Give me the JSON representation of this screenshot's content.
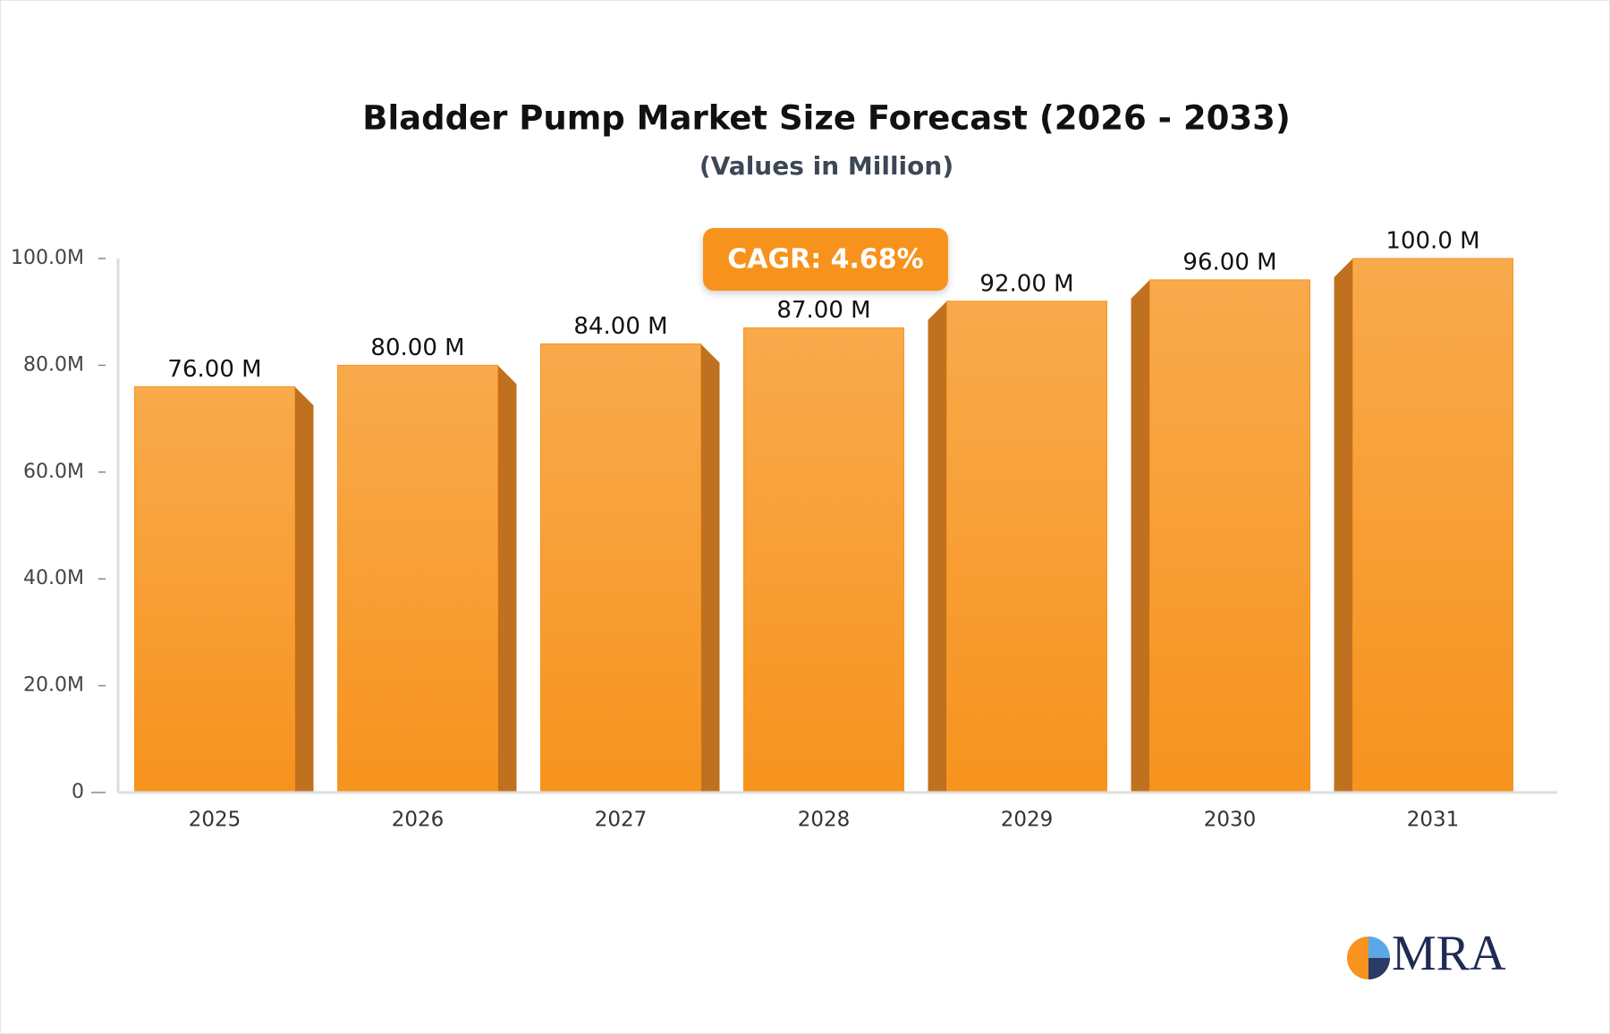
{
  "chart_data": {
    "type": "bar",
    "title": "Bladder Pump Market Size Forecast (2026 - 2033)",
    "subtitle": "(Values in Million)",
    "annotation": "CAGR: 4.68%",
    "logo": "MRA",
    "categories": [
      "2025",
      "2026",
      "2027",
      "2028",
      "2029",
      "2030",
      "2031"
    ],
    "values": [
      76,
      80,
      84,
      87,
      92,
      96,
      100
    ],
    "value_labels": [
      "76.00 M",
      "80.00 M",
      "84.00 M",
      "87.00 M",
      "92.00 M",
      "96.00 M",
      "100.0 M"
    ],
    "color": "#f7931e",
    "ylim": [
      0,
      100
    ],
    "yticks": [
      0,
      {
        "value": 20,
        "label": "20.0M"
      },
      {
        "value": 40,
        "label": "40.0M"
      },
      {
        "value": 60,
        "label": "60.0M"
      },
      {
        "value": 80,
        "label": "80.0M"
      },
      {
        "value": 100,
        "label": "100.0M"
      }
    ],
    "grid": false
  }
}
